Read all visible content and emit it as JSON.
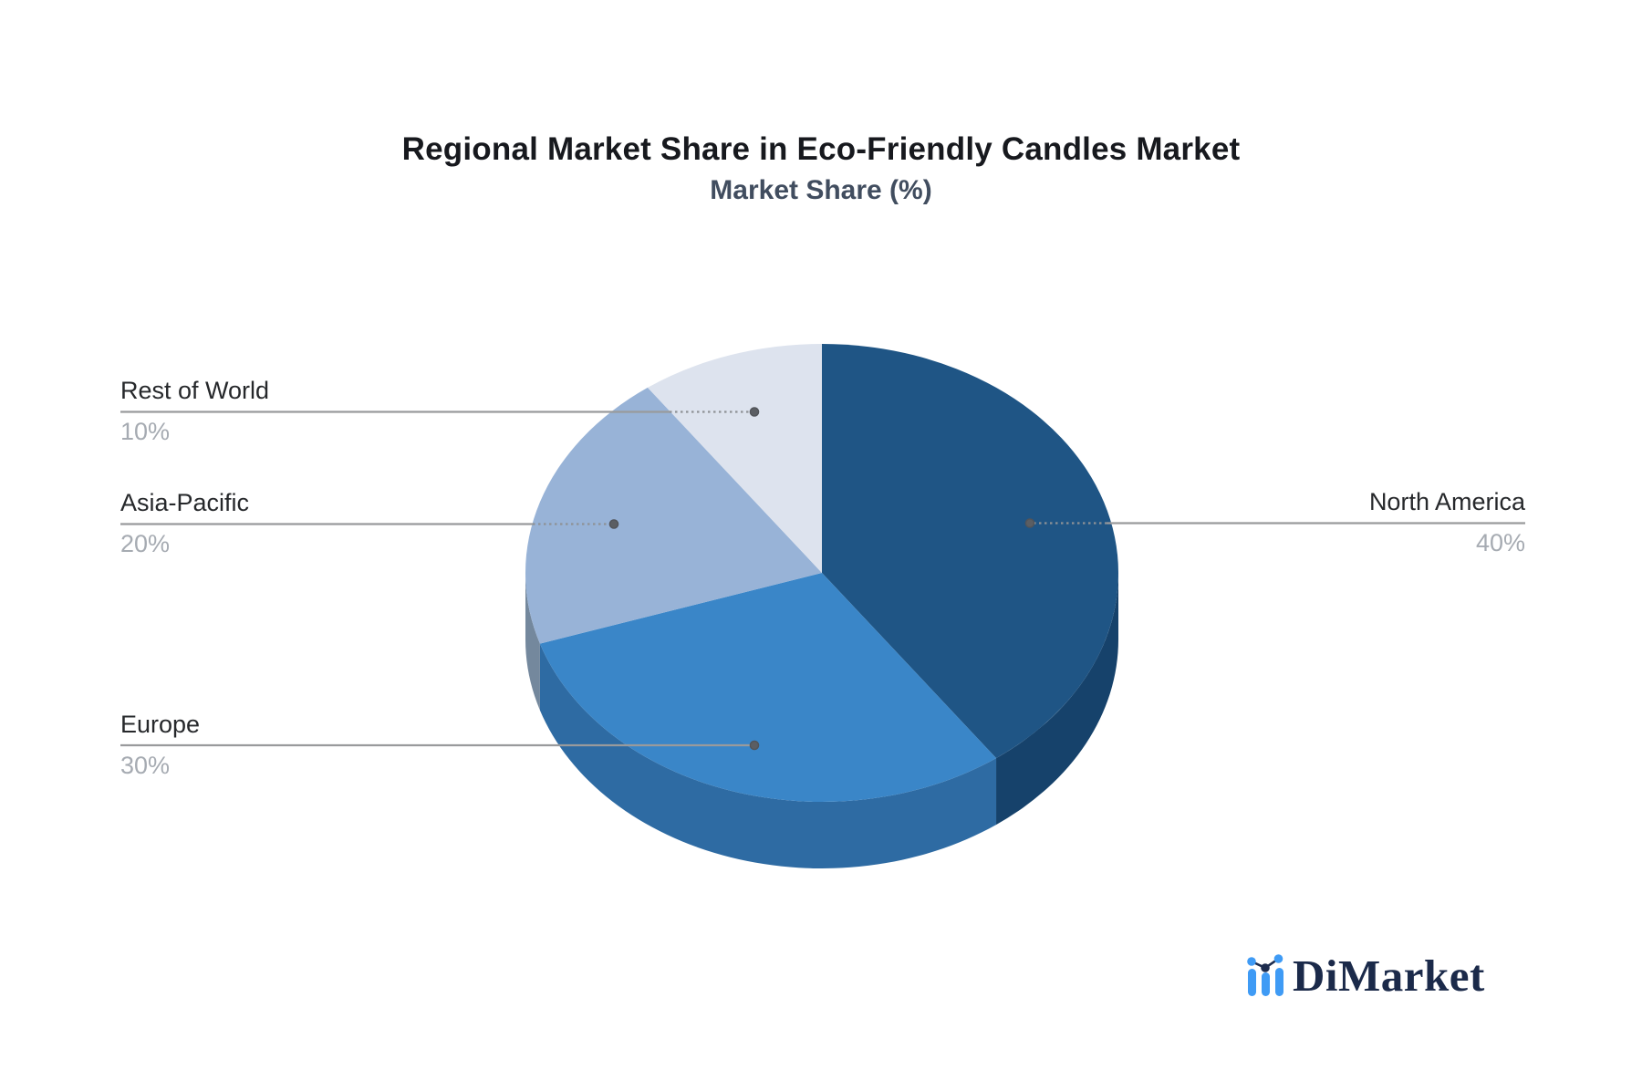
{
  "chart_data": {
    "type": "pie",
    "style": "3d",
    "title": "Regional Market Share in Eco-Friendly Candles Market",
    "subtitle": "Market Share (%)",
    "legend_position": "callout-labels",
    "start_angle_deg": 0,
    "clockwise": true,
    "slices": [
      {
        "label": "North America",
        "value": 40,
        "pct_label": "40%",
        "color": "#1f5585",
        "side_color": "#16426b"
      },
      {
        "label": "Europe",
        "value": 30,
        "pct_label": "30%",
        "color": "#3a86c8",
        "side_color": "#2e6ba3"
      },
      {
        "label": "Asia-Pacific",
        "value": 20,
        "pct_label": "20%",
        "color": "#98b3d7",
        "side_color": "#74889d"
      },
      {
        "label": "Rest of World",
        "value": 10,
        "pct_label": "10%",
        "color": "#dde3ee",
        "side_color": "#b9c3d3"
      }
    ]
  },
  "brand": {
    "name": "DiMarket"
  }
}
